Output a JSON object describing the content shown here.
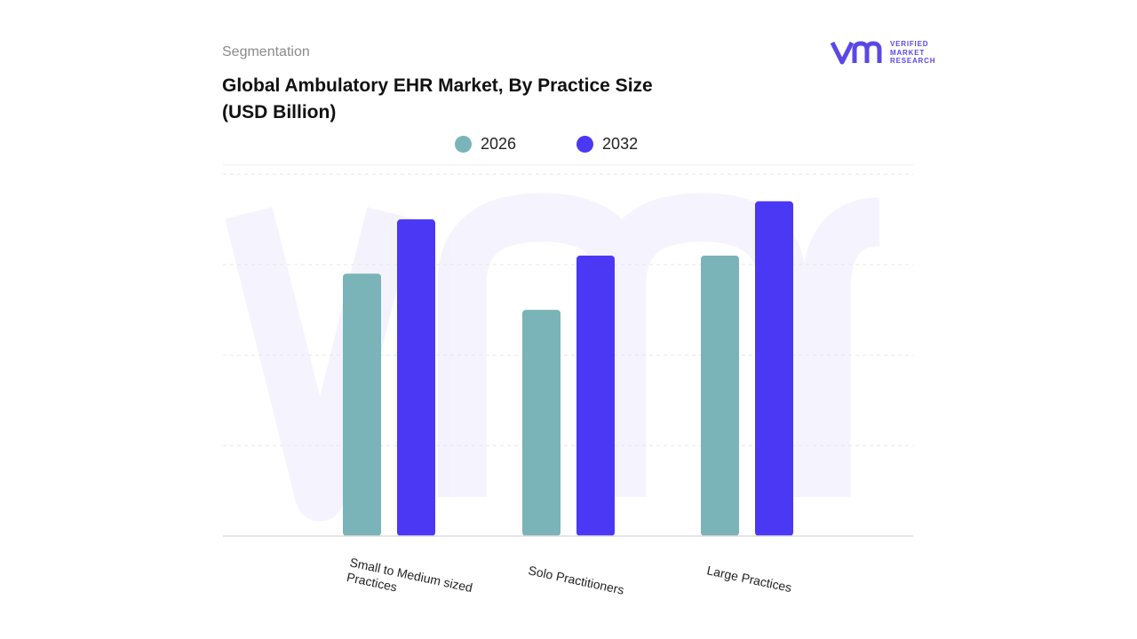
{
  "header": {
    "segment_label": "Segmentation",
    "title": "Global Ambulatory EHR Market, By Practice Size (USD Billion)"
  },
  "brand": {
    "logo_icon": "vmr-logo-icon",
    "line1": "VERIFIED",
    "line2": "MARKET",
    "line3": "RESEARCH",
    "color": "#5a48e6"
  },
  "chart_data": {
    "type": "bar",
    "title": "Global Ambulatory EHR Market, By Practice Size (USD Billion)",
    "categories": [
      [
        "Small to Medium sized",
        "Practices"
      ],
      [
        "Solo Practitioners"
      ],
      [
        "Large Practices"
      ]
    ],
    "series": [
      {
        "name": "2026",
        "color": "#7ab3b8",
        "values": [
          2.9,
          2.5,
          3.1
        ]
      },
      {
        "name": "2032",
        "color": "#4b38f5",
        "values": [
          3.5,
          3.1,
          3.7
        ]
      }
    ],
    "ylim": [
      0,
      4.1
    ],
    "gridlines": [
      1,
      2,
      3,
      4
    ],
    "legend_position": "top-center",
    "grid": true
  }
}
